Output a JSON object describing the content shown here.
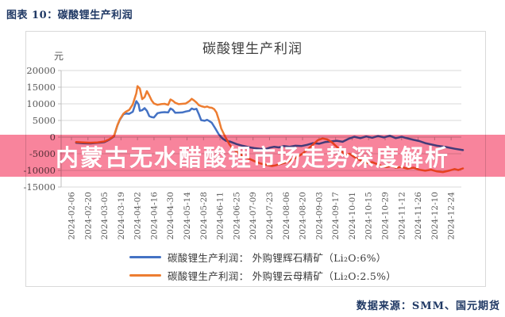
{
  "page": {
    "caption": "图表 10：碳酸锂生产利润",
    "source": "数据来源：SMM、国元期货"
  },
  "banner": {
    "text": "内蒙古无水醋酸锂市场走势深度解析"
  },
  "colors": {
    "accent_text": "#1f3864",
    "title_text": "#404040",
    "tick_text": "#595959",
    "grid": "#d9d9d9",
    "axis": "#bfbfbf",
    "banner": "#f8849c",
    "banner_text": "#ffffff",
    "series_blue": "#4472C4",
    "series_orange": "#ED7D31"
  },
  "chart_data": {
    "type": "line",
    "title": "碳酸锂生产利润",
    "unit_label": "元",
    "xlabel": "",
    "ylabel": "元",
    "ylim": [
      -15000,
      20000
    ],
    "y_ticks": [
      20000,
      15000,
      10000,
      5000,
      0,
      -5000,
      -10000,
      -15000
    ],
    "grid": true,
    "legend_position": "bottom",
    "x_tick_interval_days": 14,
    "x_range_days": [
      0,
      332
    ],
    "x_tick_labels": [
      "2024-02-06",
      "2024-02-20",
      "2024-03-05",
      "2024-03-19",
      "2024-04-02",
      "2024-04-16",
      "2024-04-30",
      "2024-05-14",
      "2024-05-28",
      "2024-06-11",
      "2024-06-25",
      "2024-07-09",
      "2024-07-23",
      "2024-08-06",
      "2024-08-20",
      "2024-09-03",
      "2024-09-17",
      "2024-10-01",
      "2024-10-15",
      "2024-10-29",
      "2024-11-12",
      "2024-11-26",
      "2024-12-10",
      "2024-12-24"
    ],
    "series": [
      {
        "name": "碳酸锂生产利润： 外购锂辉石精矿（Li₂O:6%）",
        "color": "#4472C4",
        "points": [
          [
            4,
            -1700
          ],
          [
            10,
            -1850
          ],
          [
            16,
            -1900
          ],
          [
            22,
            -1750
          ],
          [
            28,
            -1500
          ],
          [
            32,
            -800
          ],
          [
            36,
            200
          ],
          [
            39,
            3500
          ],
          [
            41,
            5200
          ],
          [
            44,
            6800
          ],
          [
            46,
            7100
          ],
          [
            49,
            7000
          ],
          [
            52,
            7600
          ],
          [
            55,
            10800
          ],
          [
            57,
            9800
          ],
          [
            58,
            7900
          ],
          [
            60,
            8100
          ],
          [
            62,
            8700
          ],
          [
            64,
            7900
          ],
          [
            66,
            6300
          ],
          [
            68,
            6000
          ],
          [
            70,
            5900
          ],
          [
            73,
            7200
          ],
          [
            76,
            7400
          ],
          [
            79,
            7500
          ],
          [
            82,
            7400
          ],
          [
            84,
            8600
          ],
          [
            86,
            8200
          ],
          [
            88,
            7300
          ],
          [
            91,
            7350
          ],
          [
            94,
            7400
          ],
          [
            97,
            7700
          ],
          [
            100,
            7900
          ],
          [
            102,
            8600
          ],
          [
            104,
            8300
          ],
          [
            106,
            8500
          ],
          [
            108,
            6900
          ],
          [
            110,
            5100
          ],
          [
            113,
            4900
          ],
          [
            115,
            5200
          ],
          [
            117,
            4800
          ],
          [
            119,
            4300
          ],
          [
            122,
            2600
          ],
          [
            125,
            800
          ],
          [
            128,
            -400
          ],
          [
            131,
            -1100
          ],
          [
            135,
            -1400
          ],
          [
            140,
            -2100
          ],
          [
            145,
            -2600
          ],
          [
            150,
            -3000
          ],
          [
            155,
            -3300
          ],
          [
            160,
            -3500
          ],
          [
            164,
            -3650
          ],
          [
            168,
            -3200
          ],
          [
            172,
            -2900
          ],
          [
            176,
            -3100
          ],
          [
            180,
            -2700
          ],
          [
            185,
            -2900
          ],
          [
            190,
            -2600
          ],
          [
            195,
            -2700
          ],
          [
            200,
            -2300
          ],
          [
            205,
            -1800
          ],
          [
            210,
            -2000
          ],
          [
            215,
            -1500
          ],
          [
            220,
            -1300
          ],
          [
            225,
            -1100
          ],
          [
            230,
            -1400
          ],
          [
            235,
            -500
          ],
          [
            240,
            100
          ],
          [
            245,
            -300
          ],
          [
            250,
            200
          ],
          [
            255,
            -200
          ],
          [
            260,
            300
          ],
          [
            265,
            -100
          ],
          [
            270,
            400
          ],
          [
            275,
            -300
          ],
          [
            280,
            100
          ],
          [
            283,
            -200
          ],
          [
            290,
            -800
          ],
          [
            295,
            -1200
          ],
          [
            300,
            -1800
          ],
          [
            305,
            -2200
          ],
          [
            310,
            -2600
          ],
          [
            318,
            -3000
          ],
          [
            325,
            -3500
          ],
          [
            332,
            -3900
          ]
        ]
      },
      {
        "name": "碳酸锂生产利润： 外购锂云母精矿（Li₂O:2.5%）",
        "color": "#ED7D31",
        "points": [
          [
            4,
            -1500
          ],
          [
            10,
            -1600
          ],
          [
            16,
            -1700
          ],
          [
            22,
            -1600
          ],
          [
            28,
            -1300
          ],
          [
            32,
            -700
          ],
          [
            36,
            300
          ],
          [
            39,
            3600
          ],
          [
            41,
            5300
          ],
          [
            44,
            7000
          ],
          [
            46,
            7600
          ],
          [
            49,
            8200
          ],
          [
            52,
            9800
          ],
          [
            55,
            13200
          ],
          [
            56,
            15300
          ],
          [
            58,
            14600
          ],
          [
            60,
            11400
          ],
          [
            62,
            12000
          ],
          [
            64,
            13800
          ],
          [
            66,
            12500
          ],
          [
            68,
            11000
          ],
          [
            70,
            10100
          ],
          [
            73,
            9700
          ],
          [
            76,
            9900
          ],
          [
            79,
            10000
          ],
          [
            82,
            9700
          ],
          [
            84,
            11300
          ],
          [
            86,
            10900
          ],
          [
            88,
            10300
          ],
          [
            91,
            9900
          ],
          [
            94,
            10000
          ],
          [
            97,
            10100
          ],
          [
            100,
            10800
          ],
          [
            102,
            11500
          ],
          [
            104,
            11000
          ],
          [
            106,
            10400
          ],
          [
            108,
            9600
          ],
          [
            110,
            9300
          ],
          [
            113,
            9000
          ],
          [
            115,
            9200
          ],
          [
            117,
            8900
          ],
          [
            119,
            8800
          ],
          [
            121,
            8400
          ],
          [
            123,
            7400
          ],
          [
            125,
            5200
          ],
          [
            127,
            2600
          ],
          [
            129,
            1100
          ],
          [
            131,
            -300
          ],
          [
            134,
            -2200
          ],
          [
            137,
            -3600
          ],
          [
            140,
            -4400
          ],
          [
            145,
            -5600
          ],
          [
            150,
            -6400
          ],
          [
            155,
            -7200
          ],
          [
            160,
            -7900
          ],
          [
            165,
            -8300
          ],
          [
            170,
            -8700
          ],
          [
            173,
            -8500
          ],
          [
            177,
            -8100
          ],
          [
            181,
            -7700
          ],
          [
            185,
            -7100
          ],
          [
            190,
            -6300
          ],
          [
            195,
            -5200
          ],
          [
            200,
            -3800
          ],
          [
            205,
            -2200
          ],
          [
            209,
            -900
          ],
          [
            213,
            -400
          ],
          [
            217,
            -700
          ],
          [
            221,
            -1600
          ],
          [
            225,
            -2900
          ],
          [
            229,
            -4300
          ],
          [
            233,
            -5300
          ],
          [
            236,
            -5000
          ],
          [
            239,
            -5800
          ],
          [
            243,
            -6600
          ],
          [
            247,
            -7300
          ],
          [
            251,
            -7800
          ],
          [
            255,
            -7500
          ],
          [
            259,
            -8100
          ],
          [
            263,
            -8700
          ],
          [
            267,
            -9000
          ],
          [
            271,
            -8700
          ],
          [
            275,
            -9200
          ],
          [
            280,
            -9000
          ],
          [
            285,
            -9500
          ],
          [
            290,
            -9200
          ],
          [
            295,
            -9800
          ],
          [
            300,
            -10100
          ],
          [
            305,
            -9800
          ],
          [
            310,
            -10300
          ],
          [
            315,
            -10500
          ],
          [
            320,
            -10100
          ],
          [
            325,
            -9600
          ],
          [
            328,
            -9900
          ],
          [
            332,
            -9400
          ]
        ]
      }
    ]
  }
}
